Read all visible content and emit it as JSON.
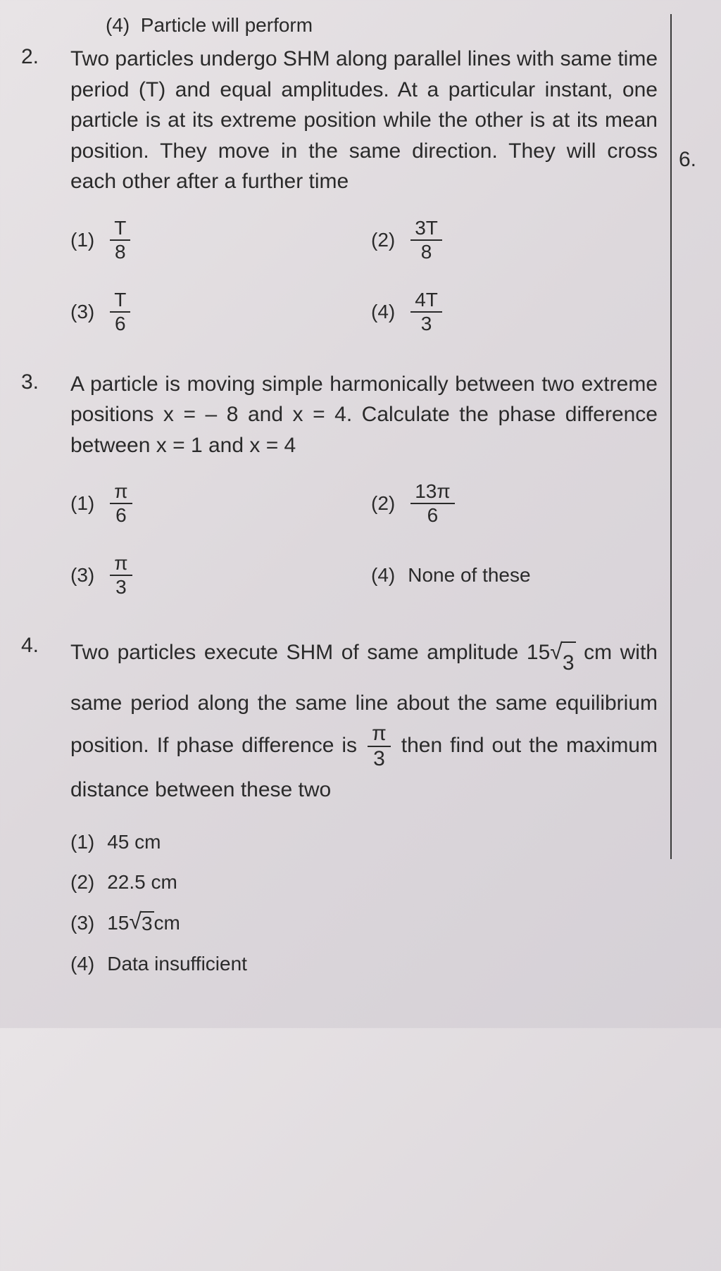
{
  "colors": {
    "background": "#e8e4e6",
    "text": "#2a2a2a",
    "border": "#3a3a3a"
  },
  "typography": {
    "body_fontsize": 30,
    "option_fontsize": 28,
    "font_family": "Arial"
  },
  "partial_header": {
    "option_label": "(4)",
    "text": "Particle will perform"
  },
  "side_question_num": "6.",
  "questions": [
    {
      "number": "2.",
      "text": "Two particles undergo SHM along parallel lines with same time period (T) and equal amplitudes. At a particular instant, one particle is at its extreme position while the other is at its mean position. They move in the same direction. They will cross each other after a further time",
      "options": [
        {
          "label": "(1)",
          "type": "frac",
          "num": "T",
          "den": "8"
        },
        {
          "label": "(2)",
          "type": "frac",
          "num": "3T",
          "den": "8"
        },
        {
          "label": "(3)",
          "type": "frac",
          "num": "T",
          "den": "6"
        },
        {
          "label": "(4)",
          "type": "frac",
          "num": "4T",
          "den": "3"
        }
      ]
    },
    {
      "number": "3.",
      "text": "A particle is moving simple harmonically between two extreme positions x = – 8 and x = 4. Calculate the phase difference between x = 1 and x = 4",
      "options": [
        {
          "label": "(1)",
          "type": "frac",
          "num": "π",
          "den": "6"
        },
        {
          "label": "(2)",
          "type": "frac",
          "num": "13π",
          "den": "6"
        },
        {
          "label": "(3)",
          "type": "frac",
          "num": "π",
          "den": "3"
        },
        {
          "label": "(4)",
          "type": "text",
          "value": "None of these"
        }
      ]
    },
    {
      "number": "4.",
      "text_parts": {
        "p1": "Two particles execute SHM of same amplitude ",
        "sqrt_coeff": "15",
        "sqrt_arg": "3",
        "p2": " cm with same period along the same line about the same equilibrium position. If phase difference is ",
        "frac_num": "π",
        "frac_den": "3",
        "p3": " then find out the maximum distance between these two"
      },
      "options": [
        {
          "label": "(1)",
          "type": "text",
          "value": "45 cm"
        },
        {
          "label": "(2)",
          "type": "text",
          "value": "22.5 cm"
        },
        {
          "label": "(3)",
          "type": "sqrt",
          "coeff": "15",
          "arg": "3",
          "suffix": " cm"
        },
        {
          "label": "(4)",
          "type": "text",
          "value": "Data insufficient"
        }
      ]
    }
  ]
}
